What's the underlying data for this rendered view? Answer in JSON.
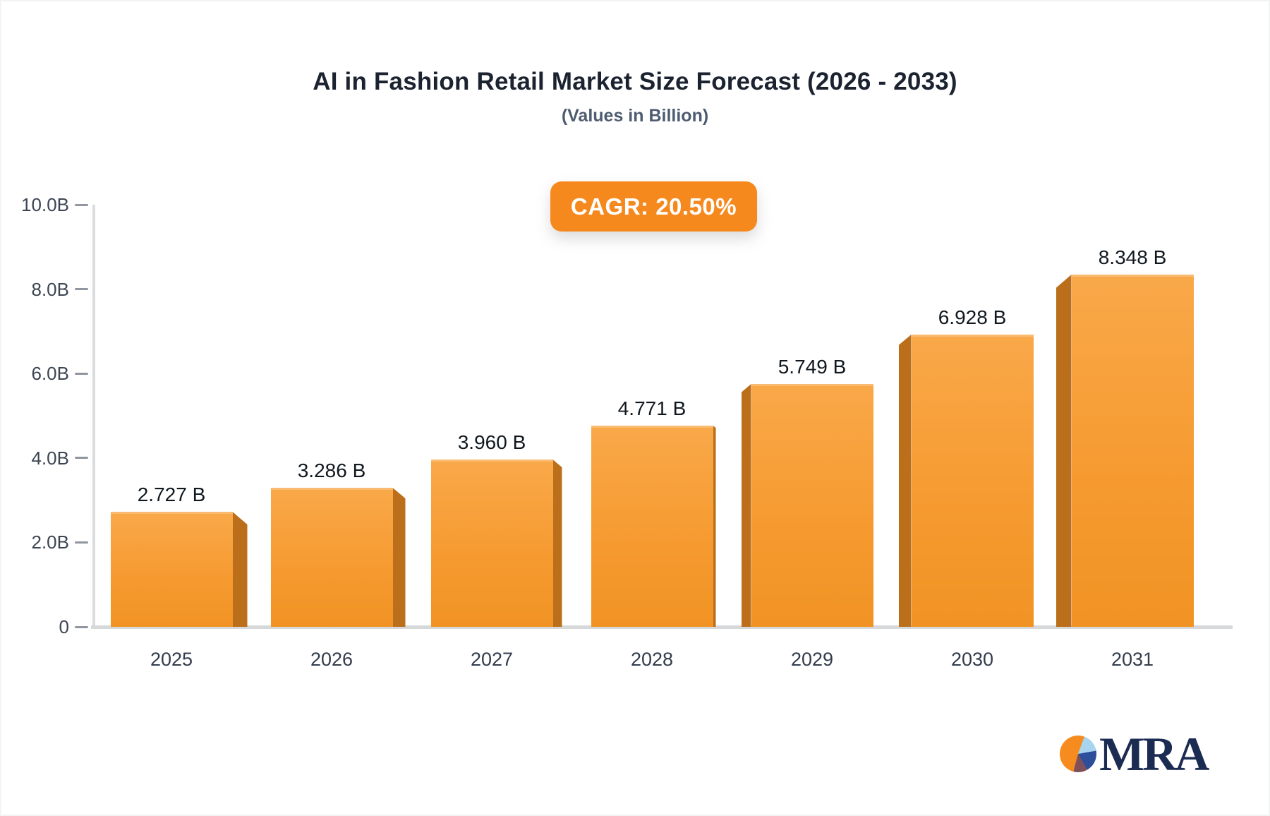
{
  "header": {
    "title": "AI in Fashion Retail Market Size Forecast (2026 - 2033)",
    "subtitle": "(Values in Billion)",
    "cagr_badge_label": "CAGR: 20.50%",
    "badge_color": "#f6891e"
  },
  "chart_data": {
    "type": "bar",
    "title": "AI in Fashion Retail Market Size Forecast (2026 - 2033)",
    "subtitle": "(Values in Billion)",
    "cagr_label": "CAGR: 20.50%",
    "cagr_percent": 20.5,
    "categories": [
      "2025",
      "2026",
      "2027",
      "2028",
      "2029",
      "2030",
      "2031"
    ],
    "values": [
      2.727,
      3.286,
      3.96,
      4.771,
      5.749,
      6.928,
      8.348
    ],
    "value_labels": [
      "2.727 B",
      "3.286 B",
      "3.960 B",
      "4.771 B",
      "5.749 B",
      "6.928 B",
      "8.348 B"
    ],
    "ylim": [
      0,
      10
    ],
    "yticks": [
      {
        "label": "10.0B",
        "value": 10
      },
      {
        "label": "8.0B",
        "value": 8
      },
      {
        "label": "6.0B",
        "value": 6
      },
      {
        "label": "4.0B",
        "value": 4
      },
      {
        "label": "2.0B",
        "value": 2
      },
      {
        "label": "0",
        "value": 0
      }
    ],
    "grid": false,
    "legend": false,
    "bar_color": "#f79a33",
    "bar_side_color": "#bc6f1b",
    "style": "3d-extruded-bars, side faces angled toward center"
  },
  "logo": {
    "text": "MRA"
  }
}
